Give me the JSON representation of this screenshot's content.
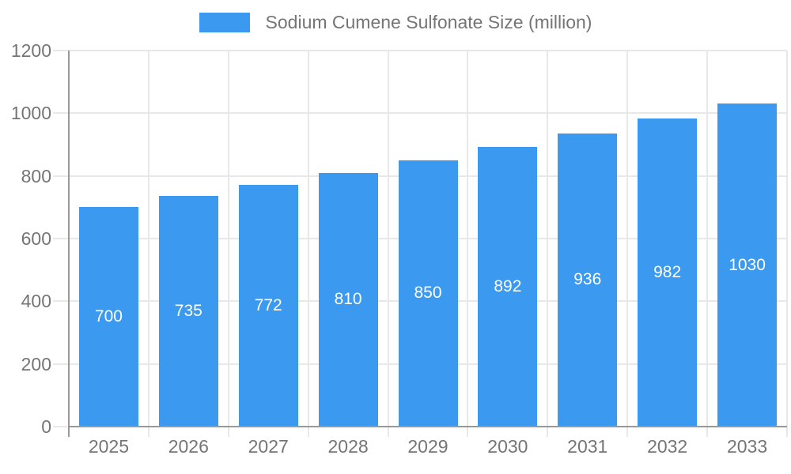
{
  "chart_data": {
    "type": "bar",
    "title": "",
    "legend": {
      "label": "Sodium Cumene Sulfonate Size (million)",
      "position": "top"
    },
    "categories": [
      "2025",
      "2026",
      "2027",
      "2028",
      "2029",
      "2030",
      "2031",
      "2032",
      "2033"
    ],
    "series": [
      {
        "name": "Sodium Cumene Sulfonate Size (million)",
        "values": [
          700,
          735,
          772,
          810,
          850,
          892,
          936,
          982,
          1030
        ]
      }
    ],
    "xlabel": "",
    "ylabel": "",
    "ylim": [
      0,
      1200
    ],
    "yticks": [
      0,
      200,
      400,
      600,
      800,
      1000,
      1200
    ],
    "grid": true,
    "value_labels": "inside-center",
    "colors": {
      "bar": "#3b99f0",
      "grid": "#e8e8e8",
      "axis": "#999999",
      "tick_text": "#757575",
      "value_text": "#ffffff",
      "background": "#ffffff"
    }
  }
}
